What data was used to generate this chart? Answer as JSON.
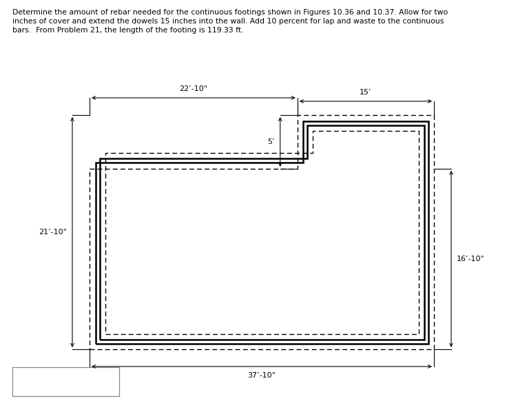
{
  "title_text": "Determine the amount of rebar needed for the continuous footings shown in Figures 10.36 and 10.37. Allow for two\ninches of cover and extend the dowels 15 inches into the wall. Add 10 percent for lap and waste to the continuous\nbars.  From Problem 21, the length of the footing is 119.33 ft.",
  "bg_color": "#ffffff",
  "dim_22_10": "22’-10\"",
  "dim_37_10": "37’-10\"",
  "dim_21_10": "21’-10\"",
  "dim_15": "15’",
  "dim_5": "5’",
  "dim_16_10": "16’-10\""
}
